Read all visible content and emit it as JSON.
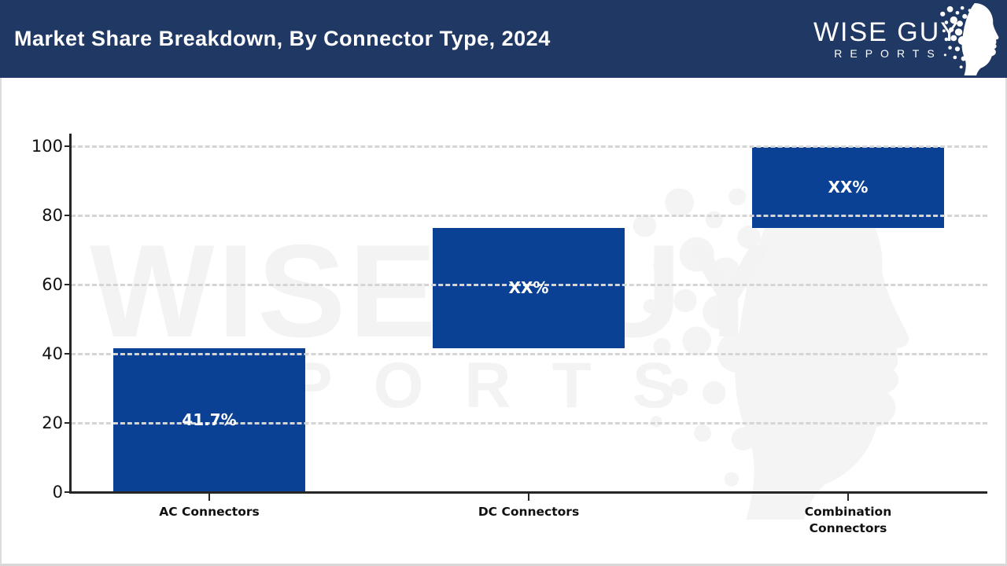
{
  "header": {
    "title": "Market Share Breakdown, By Connector Type, 2024",
    "logo": {
      "line1": "WISE GUY",
      "line2": "REPORTS"
    }
  },
  "watermark": {
    "line1": "WISE GUY",
    "line2": "REPORTS"
  },
  "colors": {
    "header_bg": "#1f3864",
    "bar": "#0a4194",
    "grid": "#d5d5d5",
    "axis": "#262626",
    "bar_label": "#ffffff",
    "watermark": "#f3f3f3"
  },
  "chart_data": {
    "type": "bar",
    "subtype": "stepped-stacked-segments",
    "title": "Market Share Breakdown, By Connector Type, 2024",
    "categories": [
      "AC Connectors",
      "DC Connectors",
      "Combination Connectors"
    ],
    "segments": [
      {
        "category": "AC Connectors",
        "base": 0,
        "top": 41.7,
        "label": "41.7%"
      },
      {
        "category": "DC Connectors",
        "base": 41.6,
        "top": 76.4,
        "label": "XX%"
      },
      {
        "category": "Combination Connectors",
        "base": 76.4,
        "top": 99.8,
        "label": "XX%"
      }
    ],
    "yticks": [
      0,
      20,
      40,
      60,
      80,
      100
    ],
    "ylim": [
      0,
      103.6
    ],
    "xlabel": "",
    "ylabel": "",
    "grid": "dashed-horizontal",
    "legend": "none"
  }
}
